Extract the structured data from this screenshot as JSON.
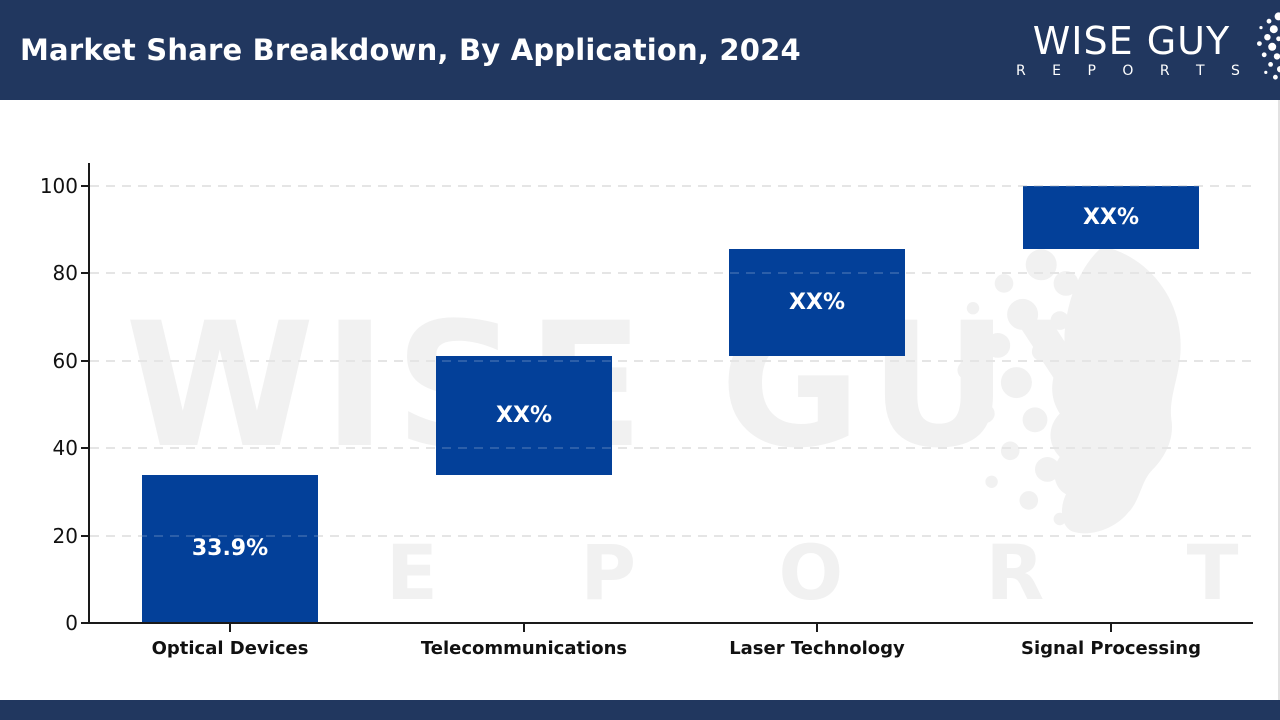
{
  "header": {
    "title": "Market Share Breakdown, By Application, 2024",
    "bg_color": "#21375f",
    "logo": {
      "line1": "WISE GUY",
      "line2": "R E P O R T S"
    }
  },
  "watermark": {
    "line1": "WISE GUY",
    "line2": "R E P O R T S"
  },
  "chart_data": {
    "type": "bar",
    "subtype": "waterfall-floating-bars",
    "title": "Market Share Breakdown, By Application, 2024",
    "xlabel": "",
    "ylabel": "",
    "ylim": [
      0,
      100
    ],
    "yticks": [
      0,
      20,
      40,
      60,
      80,
      100
    ],
    "grid": "horizontal-dashed",
    "legend": "none",
    "categories": [
      "Optical Devices",
      "Telecommunications",
      "Laser Technology",
      "Signal Processing"
    ],
    "bars": [
      {
        "category": "Optical Devices",
        "base": 0,
        "top": 33.9,
        "label": "33.9%"
      },
      {
        "category": "Telecommunications",
        "base": 33.9,
        "top": 61.0,
        "label": "XX%"
      },
      {
        "category": "Laser Technology",
        "base": 61.0,
        "top": 85.5,
        "label": "XX%"
      },
      {
        "category": "Signal Processing",
        "base": 85.5,
        "top": 100.0,
        "label": "XX%"
      }
    ],
    "colors": {
      "bar": "#034099",
      "bar_label": "#ffffff",
      "axis": "#1a1a1a",
      "tick_text": "#111111",
      "gridline": "#e0e0e0",
      "watermark": "#f1f1f1"
    }
  }
}
